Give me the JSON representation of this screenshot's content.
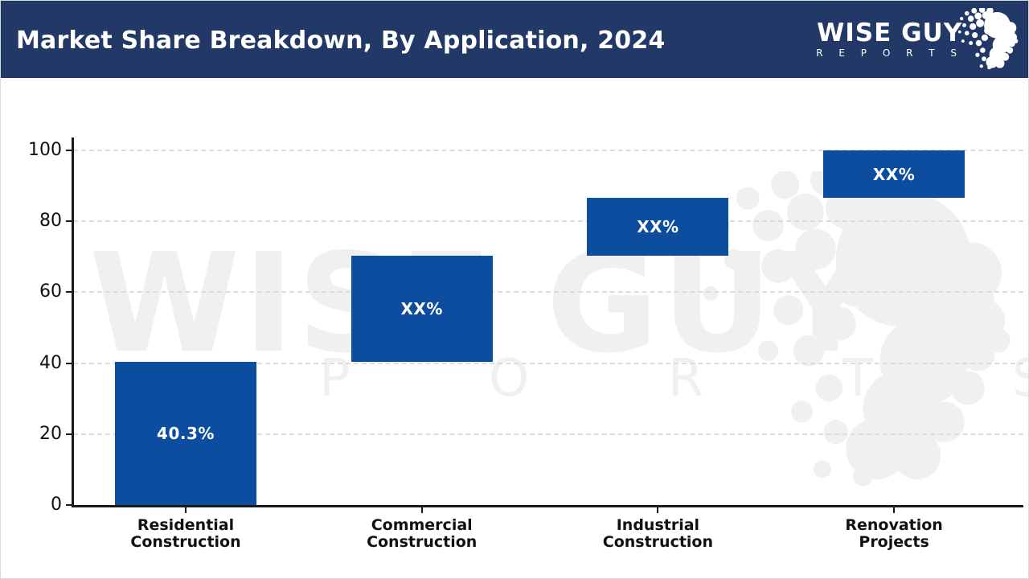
{
  "header": {
    "title": "Market Share Breakdown, By Application, 2024",
    "logo": {
      "line1": "WISE GUY",
      "line2": "R E P O R T S"
    }
  },
  "watermark": {
    "line1": "WISE GUY",
    "line2": "P O R T S"
  },
  "colors": {
    "header_bg": "#223867",
    "title_text": "#ffffff",
    "bar": "#0d4da0",
    "bar_label": "#ffffff",
    "grid": "#dcdcdc",
    "axis": "#1a1a1a",
    "watermark": "#f0f0f1",
    "page_border": "#d9d9d9"
  },
  "chart_data": {
    "type": "bar",
    "subtype": "waterfall-stacked-market-share",
    "title": "Market Share Breakdown, By Application, 2024",
    "xlabel": "",
    "ylabel": "",
    "ylim": [
      0,
      105
    ],
    "y_ticks": [
      0,
      20,
      40,
      60,
      80,
      100
    ],
    "grid": "horizontal-dashed",
    "legend": "none",
    "categories": [
      "Residential\nConstruction",
      "Commercial\nConstruction",
      "Industrial\nConstruction",
      "Renovation\nProjects"
    ],
    "segments": [
      {
        "category": "Residential Construction",
        "start": 0,
        "end": 40.3,
        "label": "40.3%"
      },
      {
        "category": "Commercial Construction",
        "start": 40.3,
        "end": 70.3,
        "label": "XX%"
      },
      {
        "category": "Industrial Construction",
        "start": 70.3,
        "end": 86.6,
        "label": "XX%"
      },
      {
        "category": "Renovation Projects",
        "start": 86.6,
        "end": 100,
        "label": "XX%"
      }
    ]
  }
}
